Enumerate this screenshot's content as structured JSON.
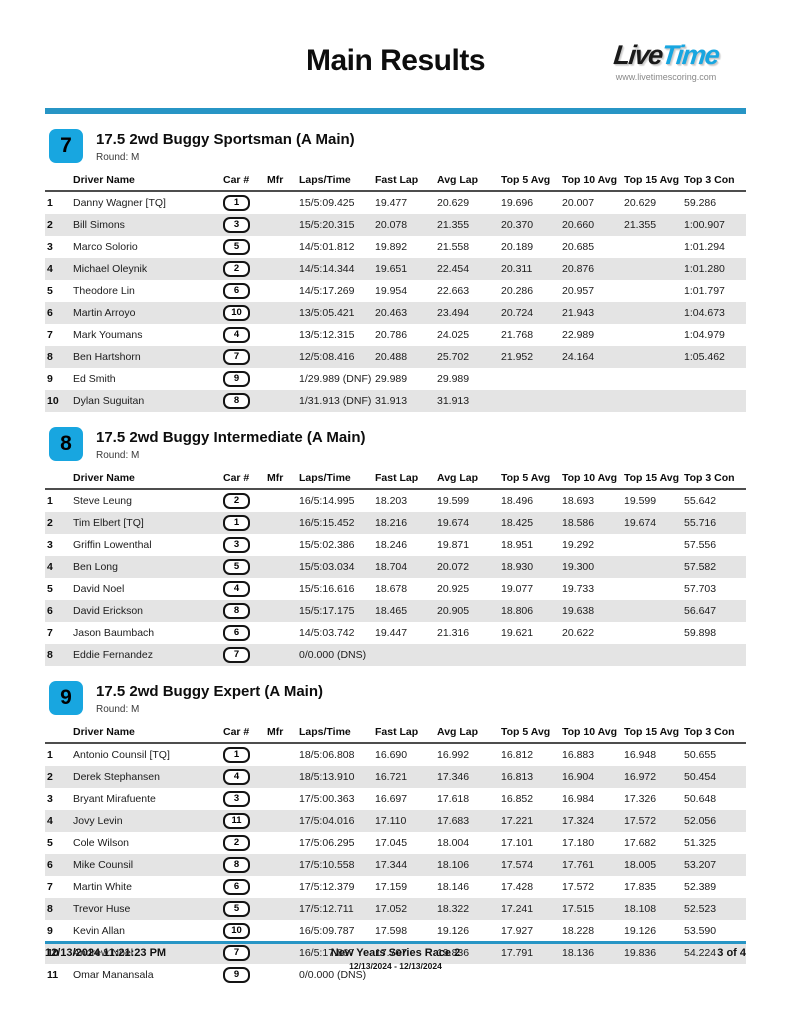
{
  "header": {
    "title": "Main Results",
    "logo": {
      "live": "Live",
      "time": "Time",
      "url": "www.livetimescoring.com"
    }
  },
  "colors": {
    "accent": "#18a6e0",
    "rule": "#2795c5",
    "row_stripe": "#e4e4e4"
  },
  "columns": [
    "Driver Name",
    "Car #",
    "Mfr",
    "Laps/Time",
    "Fast Lap",
    "Avg Lap",
    "Top 5 Avg",
    "Top 10 Avg",
    "Top 15 Avg",
    "Top 3 Con"
  ],
  "sections": [
    {
      "badge": "7",
      "title": "17.5 2wd Buggy Sportsman  (A Main)",
      "round": "Round: M",
      "rows": [
        {
          "pos": "1",
          "driver": "Danny Wagner [TQ]",
          "car": "1",
          "mfr": "",
          "laps_time": "15/5:09.425",
          "fast_lap": "19.477",
          "avg_lap": "20.629",
          "top5": "19.696",
          "top10": "20.007",
          "top15": "20.629",
          "top3con": "59.286"
        },
        {
          "pos": "2",
          "driver": "Bill Simons",
          "car": "3",
          "mfr": "",
          "laps_time": "15/5:20.315",
          "fast_lap": "20.078",
          "avg_lap": "21.355",
          "top5": "20.370",
          "top10": "20.660",
          "top15": "21.355",
          "top3con": "1:00.907"
        },
        {
          "pos": "3",
          "driver": "Marco Solorio",
          "car": "5",
          "mfr": "",
          "laps_time": "14/5:01.812",
          "fast_lap": "19.892",
          "avg_lap": "21.558",
          "top5": "20.189",
          "top10": "20.685",
          "top15": "",
          "top3con": "1:01.294"
        },
        {
          "pos": "4",
          "driver": "Michael Oleynik",
          "car": "2",
          "mfr": "",
          "laps_time": "14/5:14.344",
          "fast_lap": "19.651",
          "avg_lap": "22.454",
          "top5": "20.311",
          "top10": "20.876",
          "top15": "",
          "top3con": "1:01.280"
        },
        {
          "pos": "5",
          "driver": "Theodore Lin",
          "car": "6",
          "mfr": "",
          "laps_time": "14/5:17.269",
          "fast_lap": "19.954",
          "avg_lap": "22.663",
          "top5": "20.286",
          "top10": "20.957",
          "top15": "",
          "top3con": "1:01.797"
        },
        {
          "pos": "6",
          "driver": "Martin Arroyo",
          "car": "10",
          "mfr": "",
          "laps_time": "13/5:05.421",
          "fast_lap": "20.463",
          "avg_lap": "23.494",
          "top5": "20.724",
          "top10": "21.943",
          "top15": "",
          "top3con": "1:04.673"
        },
        {
          "pos": "7",
          "driver": "Mark Youmans",
          "car": "4",
          "mfr": "",
          "laps_time": "13/5:12.315",
          "fast_lap": "20.786",
          "avg_lap": "24.025",
          "top5": "21.768",
          "top10": "22.989",
          "top15": "",
          "top3con": "1:04.979"
        },
        {
          "pos": "8",
          "driver": "Ben Hartshorn",
          "car": "7",
          "mfr": "",
          "laps_time": "12/5:08.416",
          "fast_lap": "20.488",
          "avg_lap": "25.702",
          "top5": "21.952",
          "top10": "24.164",
          "top15": "",
          "top3con": "1:05.462"
        },
        {
          "pos": "9",
          "driver": "Ed Smith",
          "car": "9",
          "mfr": "",
          "laps_time": "1/29.989 (DNF)",
          "fast_lap": "29.989",
          "avg_lap": "29.989",
          "top5": "",
          "top10": "",
          "top15": "",
          "top3con": ""
        },
        {
          "pos": "10",
          "driver": "Dylan Suguitan",
          "car": "8",
          "mfr": "",
          "laps_time": "1/31.913 (DNF)",
          "fast_lap": "31.913",
          "avg_lap": "31.913",
          "top5": "",
          "top10": "",
          "top15": "",
          "top3con": ""
        }
      ]
    },
    {
      "badge": "8",
      "title": "17.5 2wd Buggy Intermediate (A Main)",
      "round": "Round: M",
      "rows": [
        {
          "pos": "1",
          "driver": "Steve Leung",
          "car": "2",
          "mfr": "",
          "laps_time": "16/5:14.995",
          "fast_lap": "18.203",
          "avg_lap": "19.599",
          "top5": "18.496",
          "top10": "18.693",
          "top15": "19.599",
          "top3con": "55.642"
        },
        {
          "pos": "2",
          "driver": "Tim Elbert [TQ]",
          "car": "1",
          "mfr": "",
          "laps_time": "16/5:15.452",
          "fast_lap": "18.216",
          "avg_lap": "19.674",
          "top5": "18.425",
          "top10": "18.586",
          "top15": "19.674",
          "top3con": "55.716"
        },
        {
          "pos": "3",
          "driver": "Griffin Lowenthal",
          "car": "3",
          "mfr": "",
          "laps_time": "15/5:02.386",
          "fast_lap": "18.246",
          "avg_lap": "19.871",
          "top5": "18.951",
          "top10": "19.292",
          "top15": "",
          "top3con": "57.556"
        },
        {
          "pos": "4",
          "driver": "Ben Long",
          "car": "5",
          "mfr": "",
          "laps_time": "15/5:03.034",
          "fast_lap": "18.704",
          "avg_lap": "20.072",
          "top5": "18.930",
          "top10": "19.300",
          "top15": "",
          "top3con": "57.582"
        },
        {
          "pos": "5",
          "driver": "David Noel",
          "car": "4",
          "mfr": "",
          "laps_time": "15/5:16.616",
          "fast_lap": "18.678",
          "avg_lap": "20.925",
          "top5": "19.077",
          "top10": "19.733",
          "top15": "",
          "top3con": "57.703"
        },
        {
          "pos": "6",
          "driver": "David Erickson",
          "car": "8",
          "mfr": "",
          "laps_time": "15/5:17.175",
          "fast_lap": "18.465",
          "avg_lap": "20.905",
          "top5": "18.806",
          "top10": "19.638",
          "top15": "",
          "top3con": "56.647"
        },
        {
          "pos": "7",
          "driver": "Jason Baumbach",
          "car": "6",
          "mfr": "",
          "laps_time": "14/5:03.742",
          "fast_lap": "19.447",
          "avg_lap": "21.316",
          "top5": "19.621",
          "top10": "20.622",
          "top15": "",
          "top3con": "59.898"
        },
        {
          "pos": "8",
          "driver": "Eddie Fernandez",
          "car": "7",
          "mfr": "",
          "laps_time": "0/0.000 (DNS)",
          "fast_lap": "",
          "avg_lap": "",
          "top5": "",
          "top10": "",
          "top15": "",
          "top3con": ""
        }
      ]
    },
    {
      "badge": "9",
      "title": "17.5 2wd Buggy Expert (A Main)",
      "round": "Round: M",
      "rows": [
        {
          "pos": "1",
          "driver": "Antonio Counsil [TQ]",
          "car": "1",
          "mfr": "",
          "laps_time": "18/5:06.808",
          "fast_lap": "16.690",
          "avg_lap": "16.992",
          "top5": "16.812",
          "top10": "16.883",
          "top15": "16.948",
          "top3con": "50.655"
        },
        {
          "pos": "2",
          "driver": "Derek Stephansen",
          "car": "4",
          "mfr": "",
          "laps_time": "18/5:13.910",
          "fast_lap": "16.721",
          "avg_lap": "17.346",
          "top5": "16.813",
          "top10": "16.904",
          "top15": "16.972",
          "top3con": "50.454"
        },
        {
          "pos": "3",
          "driver": "Bryant Mirafuente",
          "car": "3",
          "mfr": "",
          "laps_time": "17/5:00.363",
          "fast_lap": "16.697",
          "avg_lap": "17.618",
          "top5": "16.852",
          "top10": "16.984",
          "top15": "17.326",
          "top3con": "50.648"
        },
        {
          "pos": "4",
          "driver": "Jovy Levin",
          "car": "11",
          "mfr": "",
          "laps_time": "17/5:04.016",
          "fast_lap": "17.110",
          "avg_lap": "17.683",
          "top5": "17.221",
          "top10": "17.324",
          "top15": "17.572",
          "top3con": "52.056"
        },
        {
          "pos": "5",
          "driver": "Cole Wilson",
          "car": "2",
          "mfr": "",
          "laps_time": "17/5:06.295",
          "fast_lap": "17.045",
          "avg_lap": "18.004",
          "top5": "17.101",
          "top10": "17.180",
          "top15": "17.682",
          "top3con": "51.325"
        },
        {
          "pos": "6",
          "driver": "Mike Counsil",
          "car": "8",
          "mfr": "",
          "laps_time": "17/5:10.558",
          "fast_lap": "17.344",
          "avg_lap": "18.106",
          "top5": "17.574",
          "top10": "17.761",
          "top15": "18.005",
          "top3con": "53.207"
        },
        {
          "pos": "7",
          "driver": "Martin White",
          "car": "6",
          "mfr": "",
          "laps_time": "17/5:12.379",
          "fast_lap": "17.159",
          "avg_lap": "18.146",
          "top5": "17.428",
          "top10": "17.572",
          "top15": "17.835",
          "top3con": "52.389"
        },
        {
          "pos": "8",
          "driver": "Trevor Huse",
          "car": "5",
          "mfr": "",
          "laps_time": "17/5:12.711",
          "fast_lap": "17.052",
          "avg_lap": "18.322",
          "top5": "17.241",
          "top10": "17.515",
          "top15": "18.108",
          "top3con": "52.523"
        },
        {
          "pos": "9",
          "driver": "Kevin Allan",
          "car": "10",
          "mfr": "",
          "laps_time": "16/5:09.787",
          "fast_lap": "17.598",
          "avg_lap": "19.126",
          "top5": "17.927",
          "top10": "18.228",
          "top15": "19.126",
          "top3con": "53.590"
        },
        {
          "pos": "10",
          "driver": "Andrew Noel",
          "car": "7",
          "mfr": "",
          "laps_time": "16/5:17.867",
          "fast_lap": "17.707",
          "avg_lap": "19.836",
          "top5": "17.791",
          "top10": "18.136",
          "top15": "19.836",
          "top3con": "54.224"
        },
        {
          "pos": "11",
          "driver": "Omar Manansala",
          "car": "9",
          "mfr": "",
          "laps_time": "0/0.000 (DNS)",
          "fast_lap": "",
          "avg_lap": "",
          "top5": "",
          "top10": "",
          "top15": "",
          "top3con": ""
        }
      ]
    }
  ],
  "footer": {
    "datetime": "12/13/2024 11:21:23 PM",
    "event": "New Years Series Race 2",
    "dates": "12/13/2024 - 12/13/2024",
    "page": "3 of 4"
  }
}
